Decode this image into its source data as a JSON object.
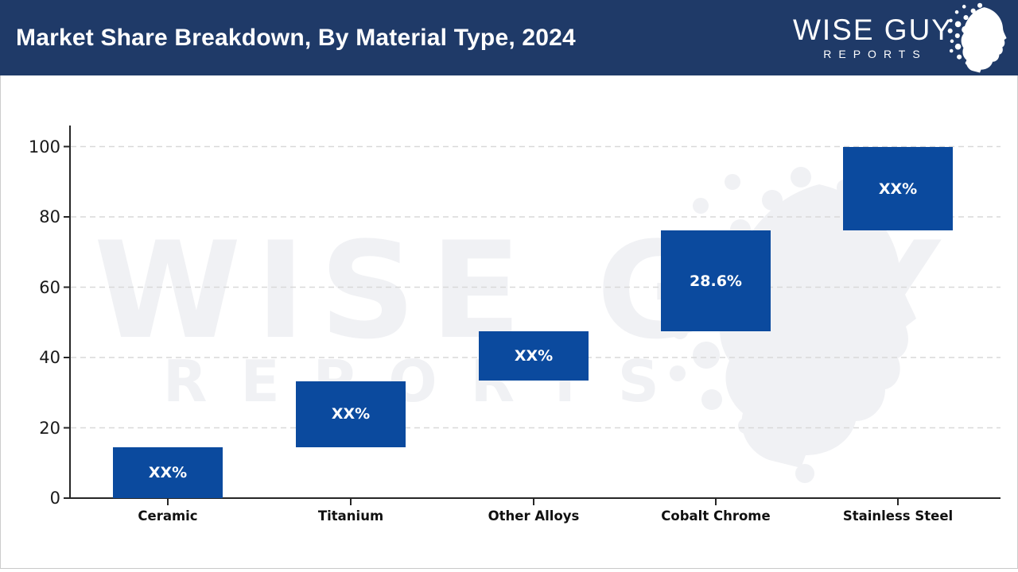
{
  "header": {
    "title": "Market Share Breakdown, By Material Type, 2024",
    "bg_color": "#1f3a68",
    "logo": {
      "line1": "WISE GUY",
      "line2": "REPORTS",
      "face_icon": "dotted-head-icon"
    }
  },
  "watermark": {
    "line1": "WISE GUY",
    "line2": "REPORTS",
    "color": "#f0f1f4"
  },
  "chart_data": {
    "type": "bar",
    "subtype": "waterfall-floating-bars",
    "title": "Market Share Breakdown, By Material Type, 2024",
    "xlabel": "",
    "ylabel": "",
    "categories": [
      "Ceramic",
      "Titanium",
      "Other Alloys",
      "Cobalt Chrome",
      "Stainless Steel"
    ],
    "segments": [
      {
        "category": "Ceramic",
        "start": 0.0,
        "end": 14.5,
        "height": 14.5,
        "label": "XX%"
      },
      {
        "category": "Titanium",
        "start": 14.5,
        "end": 33.2,
        "height": 18.7,
        "label": "XX%"
      },
      {
        "category": "Other Alloys",
        "start": 33.4,
        "end": 47.5,
        "height": 14.1,
        "label": "XX%"
      },
      {
        "category": "Cobalt Chrome",
        "start": 47.5,
        "end": 76.1,
        "height": 28.6,
        "label": "28.6%"
      },
      {
        "category": "Stainless Steel",
        "start": 76.1,
        "end": 99.8,
        "height": 23.7,
        "label": "XX%"
      }
    ],
    "bar_labels": [
      "XX%",
      "XX%",
      "XX%",
      "28.6%",
      "XX%"
    ],
    "yticks": [
      0,
      20,
      40,
      60,
      80,
      100
    ],
    "ylim": [
      0,
      105.5
    ],
    "grid": true,
    "grid_style": "dashed",
    "legend": "none",
    "colors": {
      "bar": "#0b4a9e",
      "bar_label": "#ffffff",
      "grid": "#d9d9d9",
      "spine": "#262626",
      "tick_text": "#1a1a1a",
      "category_text": "#111111"
    }
  }
}
